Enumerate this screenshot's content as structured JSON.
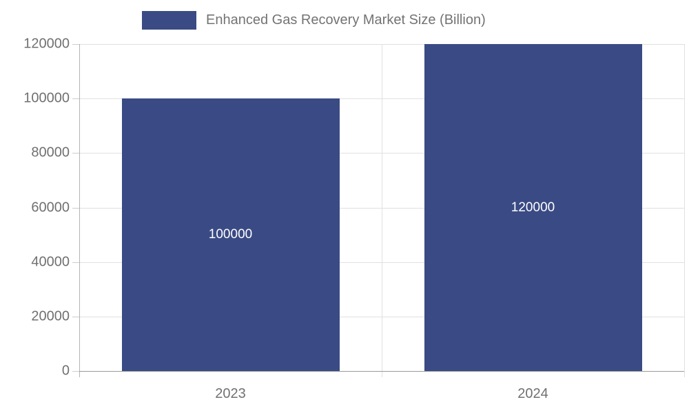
{
  "legend": {
    "label": "Enhanced Gas Recovery Market Size (Billion)"
  },
  "chart_data": {
    "type": "bar",
    "title": "Enhanced Gas Recovery Market Size (Billion)",
    "categories": [
      "2023",
      "2024"
    ],
    "values": [
      100000,
      120000
    ],
    "bar_labels": [
      "100000",
      "120000"
    ],
    "xlabel": "",
    "ylabel": "",
    "ylim": [
      0,
      120000
    ],
    "yticks": [
      0,
      20000,
      40000,
      60000,
      80000,
      100000,
      120000
    ],
    "ytick_labels": [
      "0",
      "20000",
      "40000",
      "60000",
      "80000",
      "100000",
      "120000"
    ],
    "grid": true,
    "legend_position": "top",
    "colors": {
      "bar": "#3A4A84",
      "bar_value_text": "#ffffff",
      "axis_text": "#707070",
      "legend_text": "#737373",
      "gridline": "#e0e0e0",
      "axis_line": "#999999"
    }
  }
}
